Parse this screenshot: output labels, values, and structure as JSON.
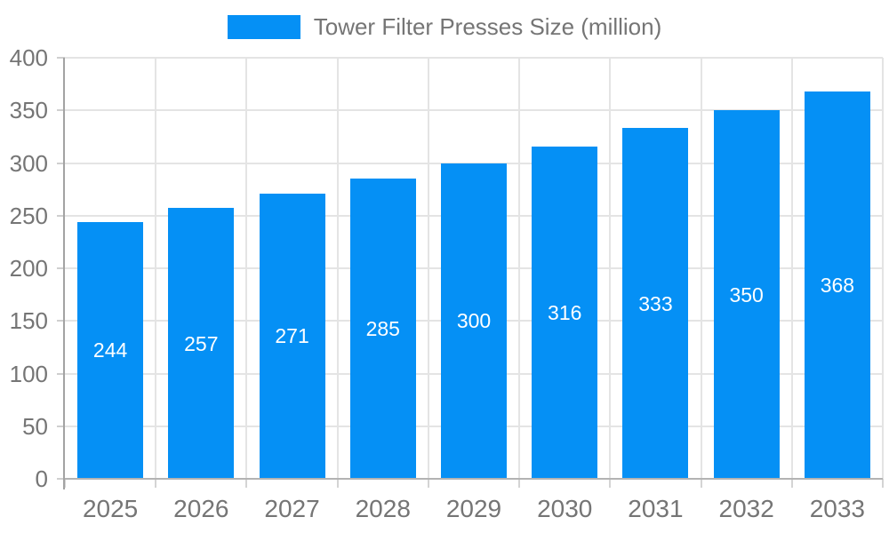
{
  "chart_data": {
    "type": "bar",
    "title": "Tower Filter Presses Size (million)",
    "legend": [
      "Tower Filter Presses Size (million)"
    ],
    "legend_position": "top",
    "categories": [
      "2025",
      "2026",
      "2027",
      "2028",
      "2029",
      "2030",
      "2031",
      "2032",
      "2033"
    ],
    "values": [
      244,
      257,
      271,
      285,
      300,
      316,
      333,
      350,
      368
    ],
    "bar_value_labels": [
      "244",
      "257",
      "271",
      "285",
      "300",
      "316",
      "333",
      "350",
      "368"
    ],
    "ylim": [
      0,
      400
    ],
    "yticks": [
      0,
      50,
      100,
      150,
      200,
      250,
      300,
      350,
      400
    ],
    "grid": true,
    "colors": {
      "bar": "#0590f5",
      "bar_label_text": "#ffffff",
      "axis_text": "#757575",
      "gridline": "#e4e4e4",
      "axis_line": "#a3a3a3"
    }
  }
}
